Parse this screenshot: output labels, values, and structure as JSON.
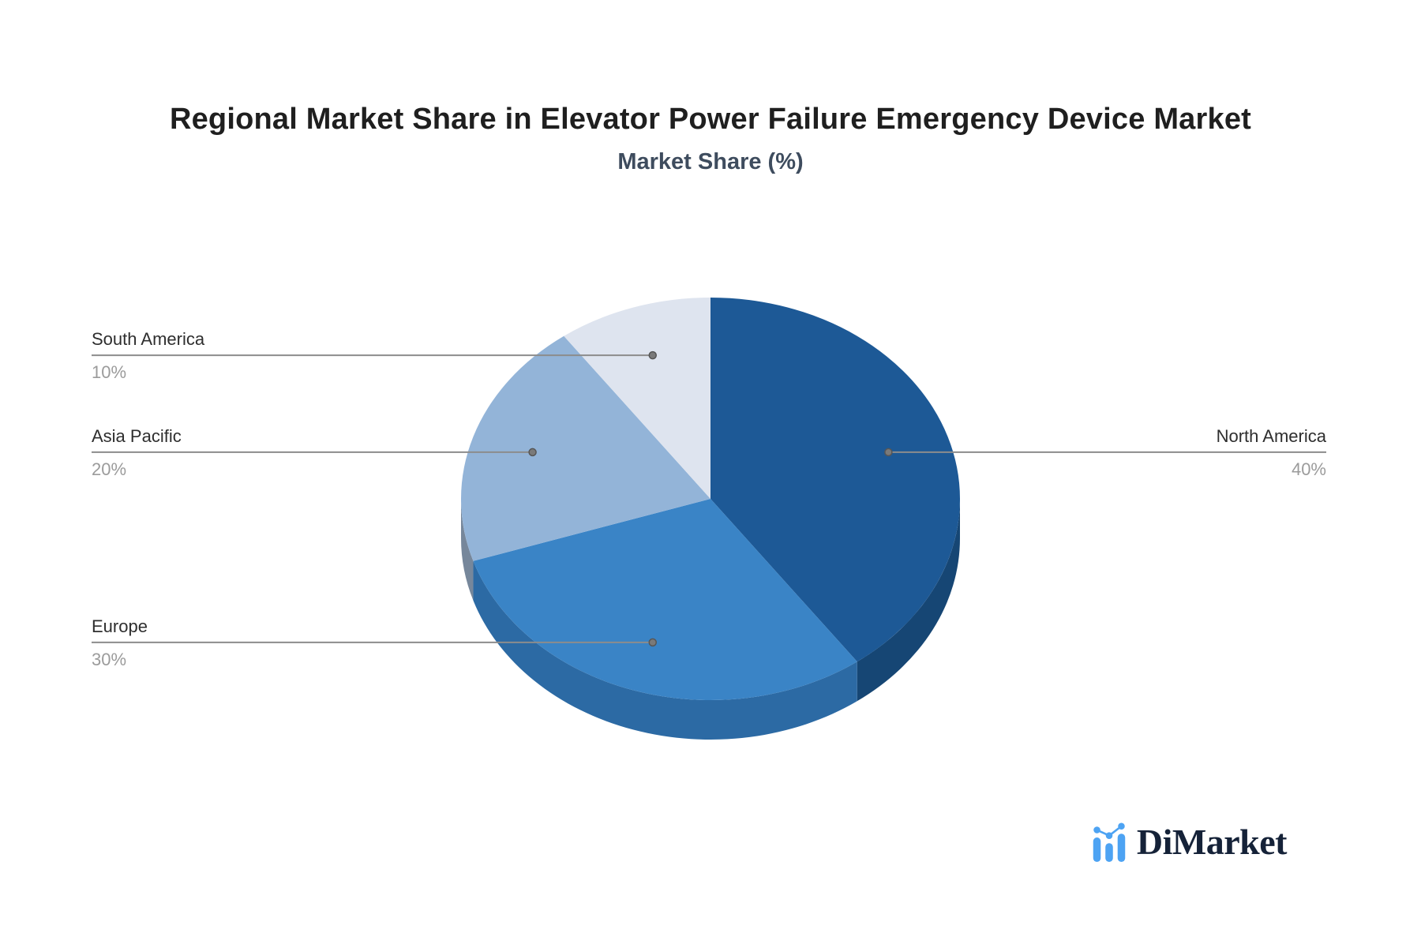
{
  "title": "Regional Market Share in Elevator Power Failure Emergency Device Market",
  "subtitle": "Market Share (%)",
  "chart_data": {
    "type": "pie",
    "title": "Regional Market Share in Elevator Power Failure Emergency Device Market",
    "subtitle": "Market Share (%)",
    "unit": "%",
    "effect": "3d-depth",
    "direction": "clockwise",
    "start_angle_deg": 0,
    "legend_position": "leader-lines",
    "leader_line_color": "#8c8c8c",
    "leader_dot_color": "#7a7a7a",
    "slices": [
      {
        "label": "North America",
        "value": 40,
        "pct_label": "40%",
        "color": "#1d5996",
        "side_color": "#164674",
        "label_side": "right"
      },
      {
        "label": "Europe",
        "value": 30,
        "pct_label": "30%",
        "color": "#3a84c6",
        "side_color": "#2c6aa4",
        "label_side": "left"
      },
      {
        "label": "Asia Pacific",
        "value": 20,
        "pct_label": "20%",
        "color": "#93b4d8",
        "side_color": "#76879b",
        "label_side": "left"
      },
      {
        "label": "South America",
        "value": 10,
        "pct_label": "10%",
        "color": "#dee4ef",
        "side_color": "#c6cdd9",
        "label_side": "left"
      }
    ],
    "label_text_color": "#2e2e2e",
    "pct_text_color": "#9b9b9b"
  },
  "branding": {
    "logo_text": "DiMarket",
    "logo_text_color": "#152238",
    "logo_icon": "bar-line-chart-icon",
    "logo_icon_color": "#4da3f3"
  }
}
